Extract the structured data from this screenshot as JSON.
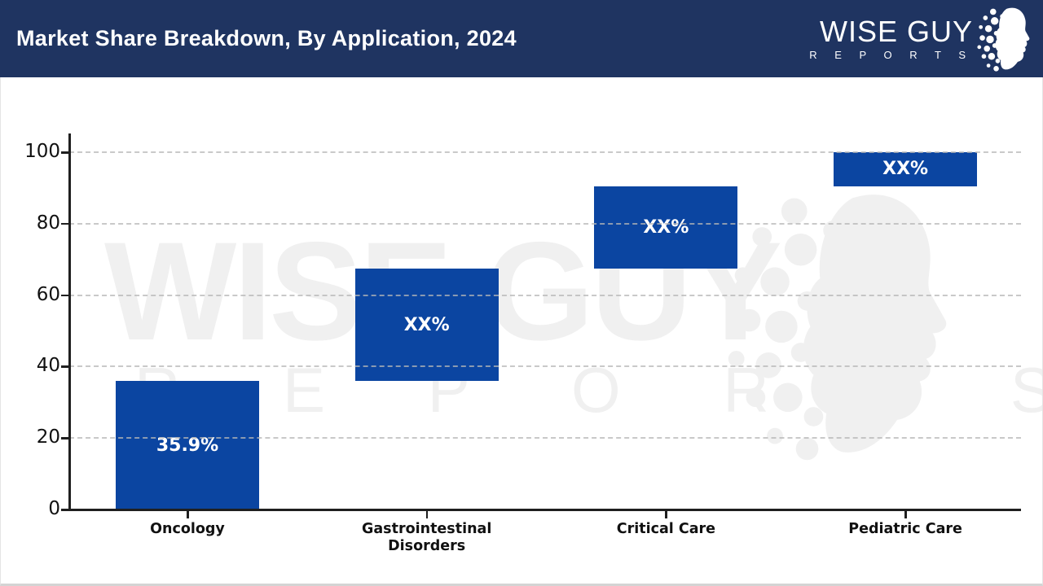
{
  "header": {
    "title": "Market Share Breakdown, By Application, 2024",
    "logo": {
      "line1": "WISE GUY",
      "line2": "R E P O R T S"
    }
  },
  "watermark": {
    "line1": "WISE GUY",
    "line2": "R E P O R T S"
  },
  "colors": {
    "header_bg": "#1f3461",
    "bar": "#0b45a1",
    "bar_label": "#ffffff",
    "grid": "#bdbdbd",
    "axis": "#1f1f1f",
    "watermark": "#f0f0f0"
  },
  "chart_data": {
    "type": "bar",
    "subtype": "waterfall",
    "title": "Market Share Breakdown, By Application, 2024",
    "categories": [
      "Oncology",
      "Gastrointestinal Disorders",
      "Critical Care",
      "Pediatric Care"
    ],
    "segments": [
      {
        "category": "Oncology",
        "start": 0,
        "end": 35.9,
        "label": "35.9%"
      },
      {
        "category": "Gastrointestinal Disorders",
        "start": 35.9,
        "end": 67.5,
        "label": "XX%"
      },
      {
        "category": "Critical Care",
        "start": 67.5,
        "end": 90.5,
        "label": "XX%"
      },
      {
        "category": "Pediatric Care",
        "start": 90.5,
        "end": 100,
        "label": "XX%"
      }
    ],
    "ylabel": "",
    "xlabel": "",
    "ylim": [
      0,
      100
    ],
    "yticks": [
      0,
      20,
      40,
      60,
      80,
      100
    ],
    "grid": "horizontal-dashed",
    "legend": "none"
  }
}
